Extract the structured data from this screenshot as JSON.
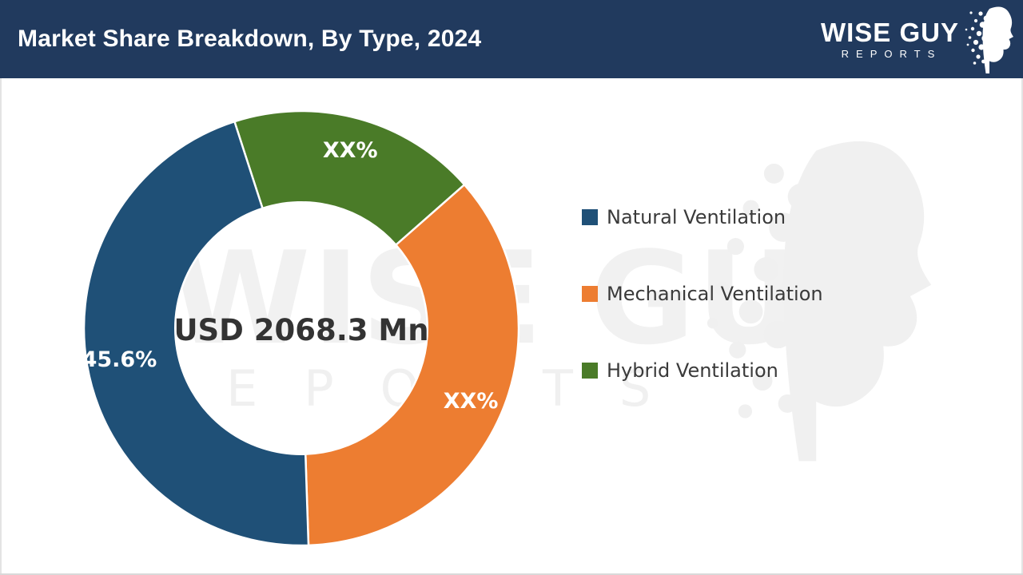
{
  "header": {
    "title": "Market Share Breakdown, By Type, 2024",
    "logo": {
      "line1": "WISE GUY",
      "line2": "REPORTS"
    },
    "background_color": "#213A5E"
  },
  "watermark": {
    "line1": "WISE GUY",
    "line2": "REPORTS"
  },
  "chart_data": {
    "type": "pie",
    "subtype": "donut",
    "title": "Market Share Breakdown, By Type, 2024",
    "center_label": "USD 2068.3 Mn",
    "legend_position": "right",
    "start_angle_deg": -17.9,
    "inner_radius_ratio": 0.58,
    "separator_color": "#ffffff",
    "segments": [
      {
        "name": "Natural Ventilation",
        "label": "45.6%",
        "value": 45.6,
        "color": "#1F5077"
      },
      {
        "name": "Mechanical Ventilation",
        "label": "XX%",
        "value": 36.0,
        "color": "#ED7D31"
      },
      {
        "name": "Hybrid Ventilation",
        "label": "XX%",
        "value": 18.5,
        "color": "#4A7B28"
      }
    ]
  }
}
